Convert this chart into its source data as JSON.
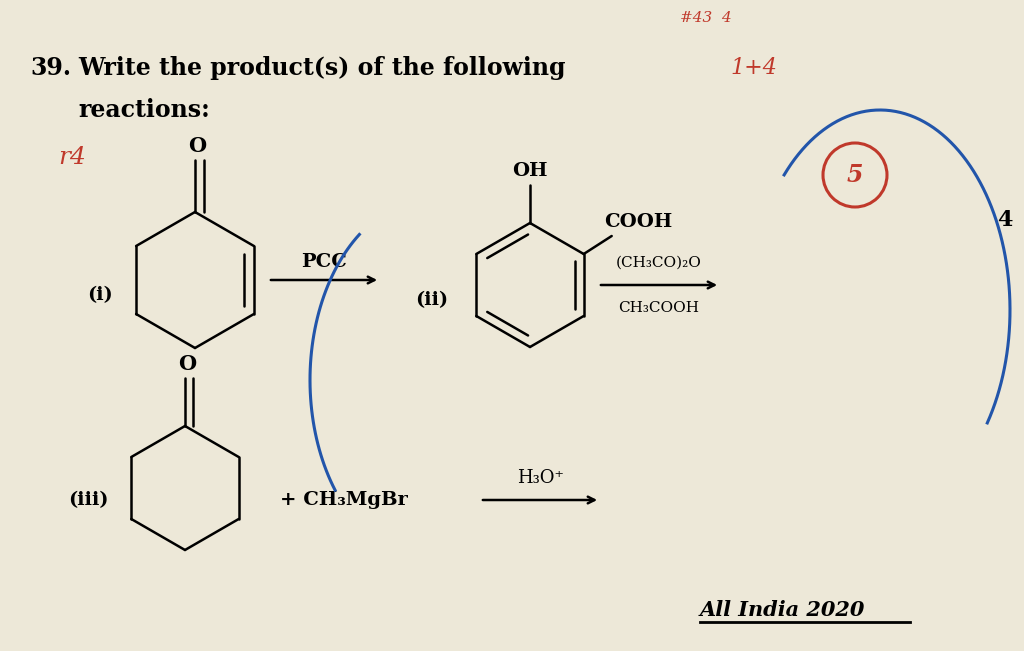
{
  "background_color": "#f0ece0",
  "fig_width": 10.24,
  "fig_height": 6.51,
  "title_number": "39.",
  "title_text": "Write the product(s) of the following",
  "title_right": "1+4",
  "subtitle": "reactions:",
  "handwritten_4_color": "#c0392b",
  "handwritten_circle_color": "#c0392b",
  "blue_curve_color": "#2255aa",
  "footer": "All India 2020",
  "pcc_label": "PCC",
  "reagent_top": "(CH₃CO)₂O",
  "reagent_bottom": "CH₃COOH",
  "h3o_label": "H₃O⁺",
  "ch3mgbr": "+ CH₃MgBr",
  "label_i": "(i)",
  "label_ii": "(ii)",
  "label_iii": "(iii)",
  "oh_label": "OH",
  "cooh_label": "COOH",
  "o_label": "O"
}
